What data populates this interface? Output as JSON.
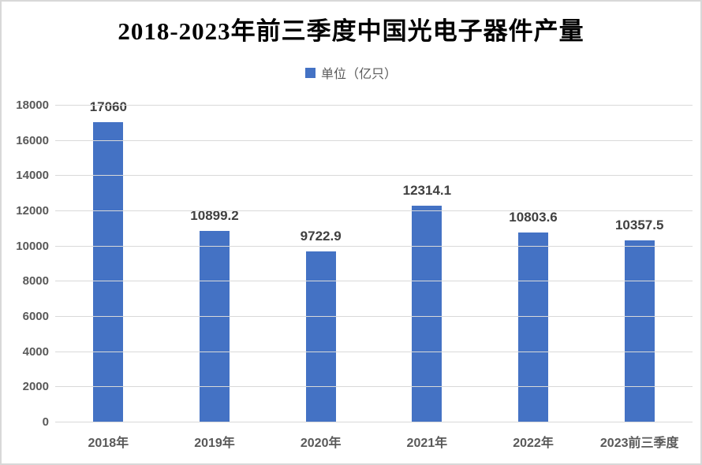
{
  "chart_data": {
    "type": "bar",
    "title": "2018-2023年前三季度中国光电子器件产量",
    "legend": "单位（亿只）",
    "categories": [
      "2018年",
      "2019年",
      "2020年",
      "2021年",
      "2022年",
      "2023前三季度"
    ],
    "values": [
      17060,
      10899.2,
      9722.9,
      12314.1,
      10803.6,
      10357.5
    ],
    "value_labels": [
      "17060",
      "10899.2",
      "9722.9",
      "12314.1",
      "10803.6",
      "10357.5"
    ],
    "xlabel": "",
    "ylabel": "",
    "ylim": [
      0,
      18000
    ],
    "yticks": [
      0,
      2000,
      4000,
      6000,
      8000,
      10000,
      12000,
      14000,
      16000,
      18000
    ],
    "grid": true,
    "legend_position": "top",
    "bar_color": "#4472C4",
    "gridline_color": "#D9D9D9",
    "axis_label_color": "#595959",
    "data_label_color": "#404040",
    "title_color": "#000000"
  }
}
